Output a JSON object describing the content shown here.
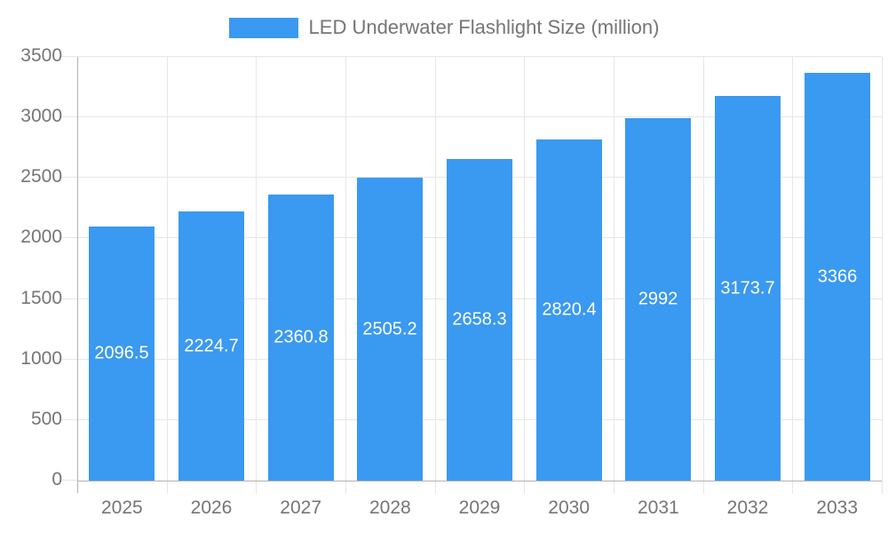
{
  "legend": {
    "label": "LED Underwater Flashlight Size (million)"
  },
  "colors": {
    "background": "#ffffff",
    "bar": "#3a99f0",
    "grid": "#e6e6e6",
    "axis": "#b1b1b1",
    "tick_label": "#757575",
    "bar_label": "#ffffff"
  },
  "chart_data": {
    "type": "bar",
    "title": "LED Underwater Flashlight Size (million)",
    "xlabel": "",
    "ylabel": "",
    "categories": [
      "2025",
      "2026",
      "2027",
      "2028",
      "2029",
      "2030",
      "2031",
      "2032",
      "2033"
    ],
    "series": [
      {
        "name": "LED Underwater Flashlight Size (million)",
        "values": [
          2096.5,
          2224.7,
          2360.8,
          2505.2,
          2658.3,
          2820.4,
          2992,
          3173.7,
          3366
        ],
        "value_labels": [
          "2096.5",
          "2224.7",
          "2360.8",
          "2505.2",
          "2658.3",
          "2820.4",
          "2992",
          "3173.7",
          "3366"
        ]
      }
    ],
    "ylim": [
      0,
      3500
    ],
    "y_ticks": [
      0,
      500,
      1000,
      1500,
      2000,
      2500,
      3000,
      3500
    ],
    "y_tick_labels": [
      "0",
      "500",
      "1000",
      "1500",
      "2000",
      "2500",
      "3000",
      "3500"
    ],
    "grid": true,
    "legend_position": "top",
    "value_labels_position": "inside-center"
  }
}
